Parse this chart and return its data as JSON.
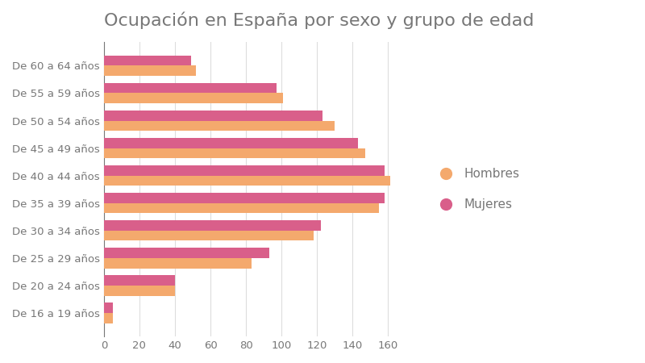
{
  "title": "Ocupación en España por sexo y grupo de edad",
  "categories": [
    "De 60 a 64 años",
    "De 55 a 59 años",
    "De 50 a 54 años",
    "De 45 a 49 años",
    "De 40 a 44 años",
    "De 35 a 39 años",
    "De 30 a 34 años",
    "De 25 a 29 años",
    "De 20 a 24 años",
    "De 16 a 19 años"
  ],
  "hombres": [
    52,
    101,
    130,
    147,
    161,
    155,
    118,
    83,
    40,
    5
  ],
  "mujeres": [
    49,
    97,
    123,
    143,
    158,
    158,
    122,
    93,
    40,
    5
  ],
  "hombres_color": "#F4A96D",
  "mujeres_color": "#D95F8A",
  "legend_hombres": "Hombres",
  "legend_mujeres": "Mujeres",
  "xlim": [
    0,
    175
  ],
  "xticks": [
    0,
    20,
    40,
    60,
    80,
    100,
    120,
    140,
    160
  ],
  "title_fontsize": 16,
  "label_fontsize": 9.5,
  "tick_fontsize": 9.5,
  "bar_height": 0.38,
  "background_color": "#ffffff",
  "grid_color": "#dddddd",
  "text_color": "#777777"
}
